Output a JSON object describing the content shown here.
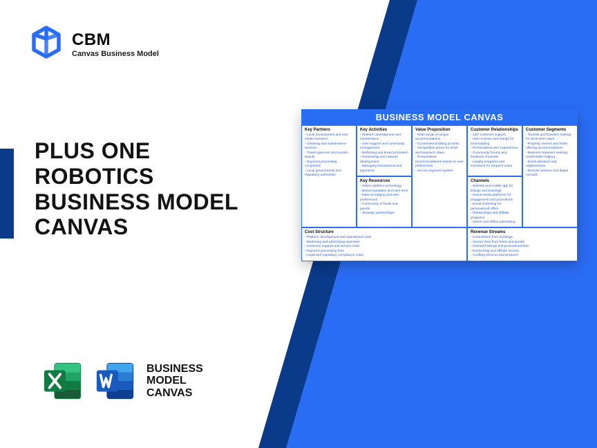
{
  "colors": {
    "brand_blue": "#2a6df5",
    "deep_blue": "#0a3a8a",
    "text_dark": "#121212",
    "canvas_link": "#2a5ed4",
    "excel_dark": "#107c41",
    "excel_light": "#21a366",
    "word_dark": "#103f91",
    "word_light": "#2b7cd3"
  },
  "logo": {
    "abbr": "CBM",
    "tagline": "Canvas Business Model"
  },
  "title": {
    "l1": "PLUS ONE",
    "l2": "ROBOTICS",
    "l3": "BUSINESS MODEL",
    "l4": "CANVAS"
  },
  "bmc_label": {
    "l1": "BUSINESS",
    "l2": "MODEL",
    "l3": "CANVAS"
  },
  "canvas": {
    "title": "BUSINESS MODEL CANVAS",
    "sections": {
      "key_partners": {
        "heading": "Key Partners",
        "items": [
          "Local homeowners and real estate investors",
          "Cleaning and maintenance services",
          "Travel agencies and tourism boards",
          "Payment processing companies",
          "Local governments and regulatory authorities"
        ]
      },
      "key_activities": {
        "heading": "Key Activities",
        "items": [
          "Platform development and maintenance",
          "User support and community management",
          "Marketing and brand promotion",
          "Partnership and network development",
          "Managing transactions and payments"
        ]
      },
      "value_proposition": {
        "heading": "Value Proposition",
        "items": [
          "Wide range of unique accommodations",
          "Convenient booking process",
          "Competitive prices for short and long-term stays",
          "Personalized recommendations based on user preferences",
          "Secure payment system"
        ]
      },
      "customer_relationships": {
        "heading": "Customer Relationships",
        "items": [
          "24/7 customer support",
          "User reviews and ratings for trust-building",
          "Personalized user experiences",
          "Community forums and feedback channels",
          "Loyalty programs and incentives for frequent users"
        ]
      },
      "customer_segments": {
        "heading": "Customer Segments",
        "items": [
          "Tourists and travelers looking for short-term stays",
          "Property owners and hosts offering accommodations",
          "Business travelers seeking comfortable lodging",
          "Event planners and organizations",
          "Remote workers and digital nomads"
        ]
      },
      "key_resources": {
        "heading": "Key Resources",
        "items": [
          "Online platform technology",
          "Brand reputation and user trust",
          "Data on lodging and user preferences",
          "Community of hosts and guests",
          "Strategic partnerships"
        ]
      },
      "channels": {
        "heading": "Channels",
        "items": [
          "Website and mobile app for listings and bookings",
          "Social media platforms for engagement and promotions",
          "Email marketing for personalized offers",
          "Partnerships and affiliate programs",
          "Online and offline advertising"
        ]
      },
      "cost_structure": {
        "heading": "Cost Structure",
        "items": [
          "Platform development and operational costs",
          "Marketing and advertising expenses",
          "Customer support and service costs",
          "Payment processing fees",
          "Legal and regulatory compliance costs"
        ]
      },
      "revenue_streams": {
        "heading": "Revenue Streams",
        "items": [
          "Commission from bookings",
          "Service fees from hosts and guests",
          "Featured listings and promotional fees",
          "Partnership and affiliate income",
          "Ancillary services and products"
        ]
      }
    }
  }
}
